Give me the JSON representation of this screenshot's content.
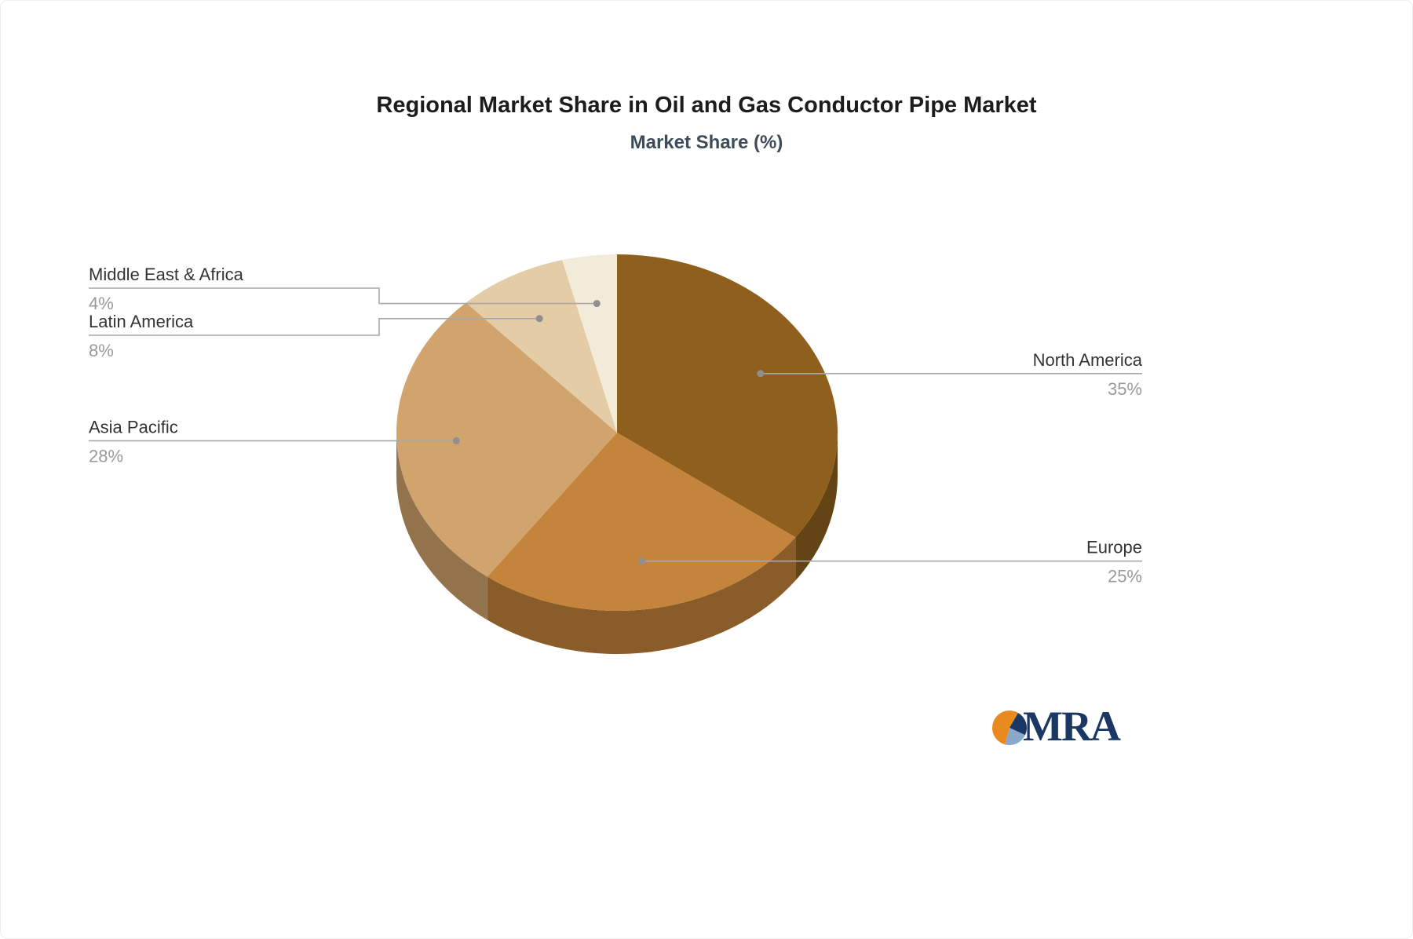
{
  "title": "Regional Market Share in Oil and Gas Conductor Pipe Market",
  "subtitle": "Market Share (%)",
  "logo": {
    "text": "MRA"
  },
  "chart_data": {
    "type": "pie",
    "title": "Regional Market Share in Oil and Gas Conductor Pipe Market",
    "subtitle": "Market Share (%)",
    "unit": "%",
    "categories": [
      "North America",
      "Europe",
      "Asia Pacific",
      "Latin America",
      "Middle East & Africa"
    ],
    "values": [
      35,
      25,
      28,
      8,
      4
    ],
    "value_labels": [
      "35%",
      "25%",
      "28%",
      "8%",
      "4%"
    ],
    "colors": [
      "#8F5F1E",
      "#C5843B",
      "#D0A46C",
      "#E3CCA6",
      "#F3EBDA"
    ],
    "start_angle": 0,
    "direction": "clockwise",
    "is_3d": true,
    "legend_position": "none",
    "label_sides": [
      "right",
      "right",
      "left",
      "left",
      "left"
    ]
  },
  "style": {
    "name_color": "#333333",
    "value_color": "#999999",
    "connector_color": "#a8a8a8",
    "dot_color": "#8f8f8f",
    "title_color": "#1c1c1c",
    "subtitle_color": "#3e4c59",
    "logo_navy": "#1b3764",
    "logo_orange": "#e98a1f",
    "logo_steel": "#8aa9c9"
  }
}
